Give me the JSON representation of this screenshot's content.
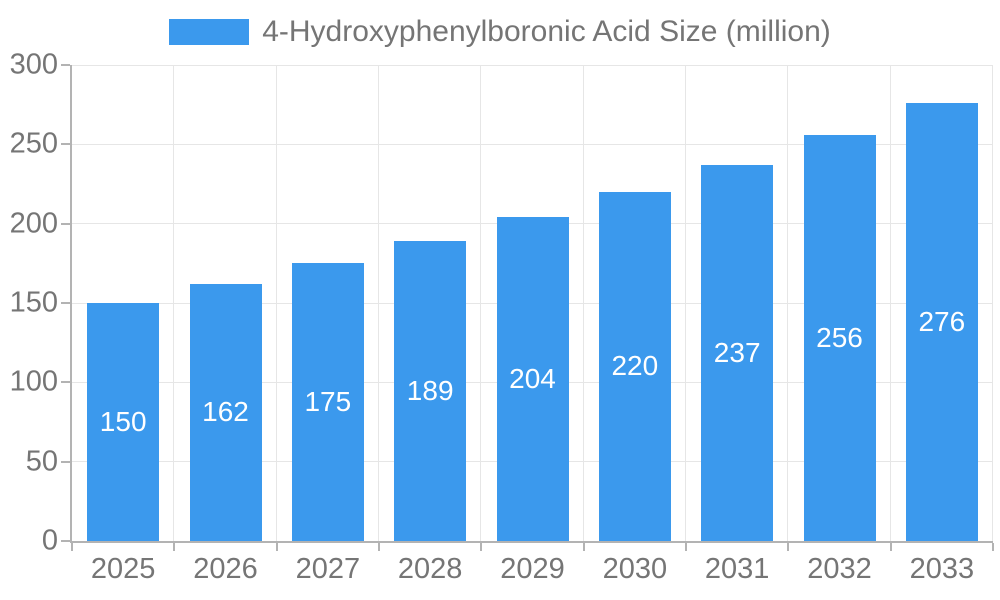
{
  "legend": {
    "label": "4-Hydroxyphenylboronic Acid Size (million)"
  },
  "chart_data": {
    "type": "bar",
    "title": "4-Hydroxyphenylboronic Acid Size (million)",
    "categories": [
      "2025",
      "2026",
      "2027",
      "2028",
      "2029",
      "2030",
      "2031",
      "2032",
      "2033"
    ],
    "values": [
      150,
      162,
      175,
      189,
      204,
      220,
      237,
      256,
      276
    ],
    "series_name": "4-Hydroxyphenylboronic Acid Size (million)",
    "xlabel": "",
    "ylabel": "",
    "ylim": [
      0,
      300
    ],
    "yticks": [
      0,
      50,
      100,
      150,
      200,
      250,
      300
    ],
    "grid": true,
    "legend_position": "top",
    "bar_labels_shown": true,
    "colors": {
      "bar": "#3B99ED",
      "bar_label": "#FFFFFF",
      "axis_text": "#757575",
      "legend_text": "#757575",
      "gridline": "#E6E6E6",
      "axis_line": "#B3B3B3"
    }
  }
}
